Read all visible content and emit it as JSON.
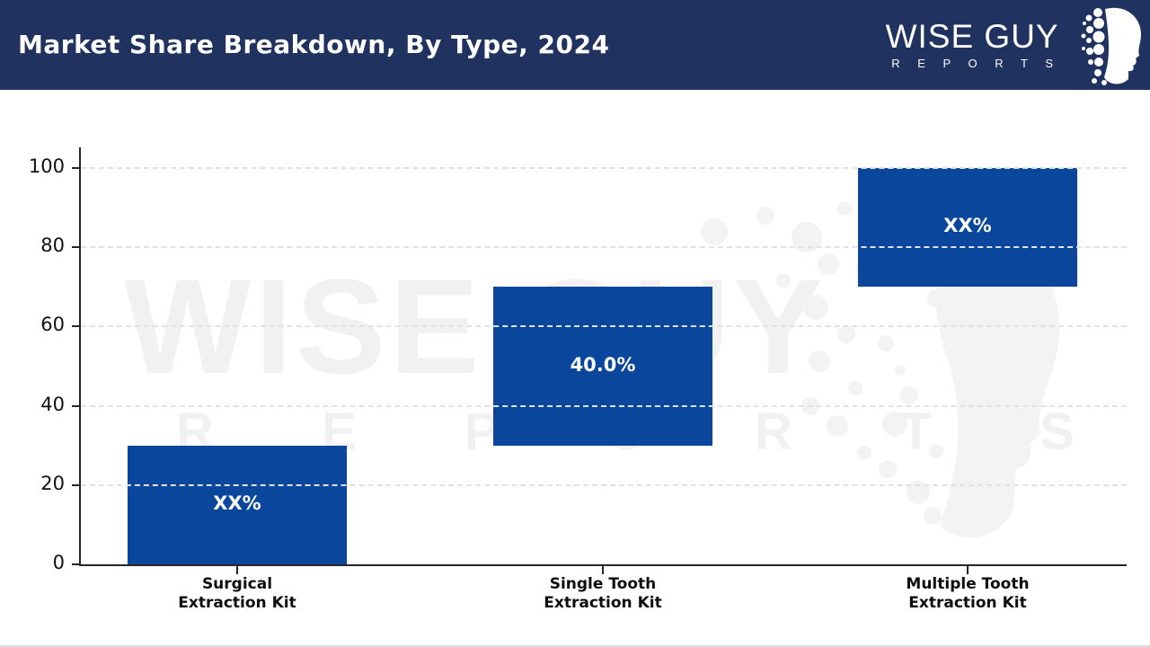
{
  "header": {
    "title": "Market Share Breakdown, By Type, 2024",
    "logo": {
      "name": "WISE GUY",
      "tagline": "R E P O R T S"
    }
  },
  "watermark": {
    "line1": "WISE GUY",
    "line2": "R E P O R T S"
  },
  "chart_data": {
    "type": "bar",
    "variant": "floating-waterfall",
    "title": "Market Share Breakdown, By Type, 2024",
    "categories": [
      "Surgical Extraction Kit",
      "Single Tooth Extraction Kit",
      "Multiple Tooth Extraction Kit"
    ],
    "category_lines": [
      [
        "Surgical",
        "Extraction Kit"
      ],
      [
        "Single Tooth",
        "Extraction Kit"
      ],
      [
        "Multiple Tooth",
        "Extraction Kit"
      ]
    ],
    "series": [
      {
        "name": "Market Share",
        "segments": [
          {
            "category": "Surgical Extraction Kit",
            "start": 0,
            "end": 30,
            "label": "XX%"
          },
          {
            "category": "Single Tooth Extraction Kit",
            "start": 30,
            "end": 70,
            "label": "40.0%"
          },
          {
            "category": "Multiple Tooth Extraction Kit",
            "start": 70,
            "end": 100,
            "label": "XX%"
          }
        ]
      }
    ],
    "ylim": [
      0,
      100
    ],
    "yticks": [
      0,
      20,
      40,
      60,
      80,
      100
    ],
    "grid": true,
    "grid_style": "dashed",
    "legend": false
  },
  "colors": {
    "header_bg": "#20325f",
    "bar": "#0a479c",
    "bar_label": "#ffffff",
    "grid": "#e2e2e2",
    "axis": "#262626",
    "watermark": "#f1f1f1"
  }
}
